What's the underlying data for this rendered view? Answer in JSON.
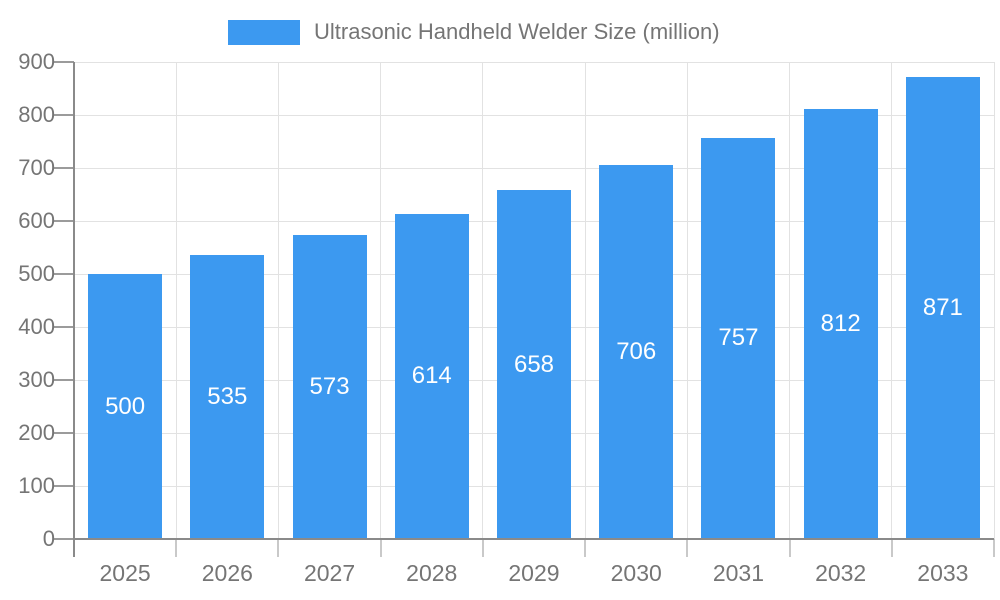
{
  "legend": {
    "label": "Ultrasonic Handheld Welder Size (million)"
  },
  "colors": {
    "bar": "#3C99F0",
    "axis": "#8A8A8A",
    "grid": "#E2E2E2",
    "tick_y": "#9B9B9B",
    "tick_x": "#C9C9C9",
    "tick_label": "#757575",
    "value_label": "#FFFFFF",
    "background": "#FFFFFF"
  },
  "chart_data": {
    "type": "bar",
    "title": "Ultrasonic Handheld Welder Size (million)",
    "categories": [
      "2025",
      "2026",
      "2027",
      "2028",
      "2029",
      "2030",
      "2031",
      "2032",
      "2033"
    ],
    "values": [
      500,
      535,
      573,
      614,
      658,
      706,
      757,
      812,
      871
    ],
    "series_name": "Ultrasonic Handheld Welder Size (million)",
    "xlabel": "",
    "ylabel": "",
    "ylim": [
      0,
      900
    ],
    "ytick_step": 100,
    "yticks": [
      "0",
      "100",
      "200",
      "300",
      "400",
      "500",
      "600",
      "700",
      "800",
      "900"
    ],
    "grid": true,
    "legend_position": "top",
    "value_labels_shown": true,
    "value_label_position": "center-of-bar"
  }
}
